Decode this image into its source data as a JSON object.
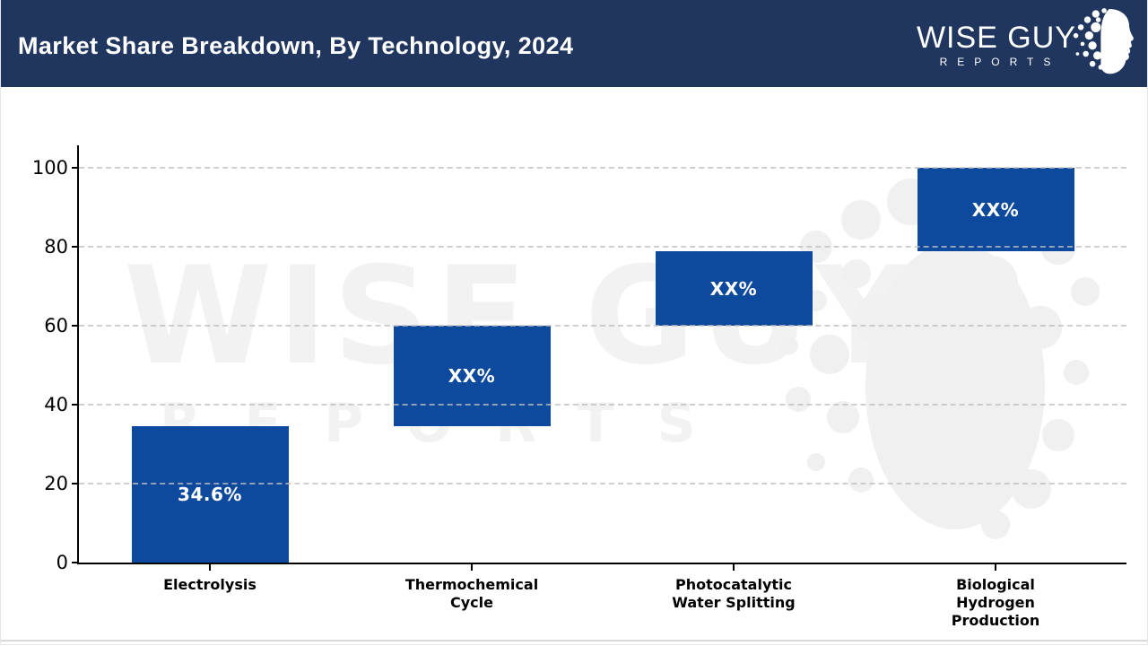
{
  "header": {
    "title": "Market Share Breakdown, By Technology, 2024",
    "logo": {
      "line1": "WISE GUY",
      "line2": "REPORTS"
    },
    "bg_color": "#20365f"
  },
  "watermark": {
    "line1": "WISE GUY",
    "line2": "REPORTS"
  },
  "chart_data": {
    "type": "bar",
    "subtype": "waterfall",
    "title": "Market Share Breakdown, By Technology, 2024",
    "categories": [
      "Electrolysis",
      "Thermochemical\nCycle",
      "Photocatalytic\nWater Splitting",
      "Biological\nHydrogen\nProduction"
    ],
    "segments": [
      {
        "category": "Electrolysis",
        "start": 0,
        "end": 34.6,
        "label": "34.6%"
      },
      {
        "category": "Thermochemical Cycle",
        "start": 34.6,
        "end": 60,
        "label": "XX%"
      },
      {
        "category": "Photocatalytic Water Splitting",
        "start": 60,
        "end": 78.8,
        "label": "XX%"
      },
      {
        "category": "Biological Hydrogen Production",
        "start": 78.8,
        "end": 100,
        "label": "XX%"
      }
    ],
    "ylim": [
      0,
      106
    ],
    "yticks": [
      0,
      20,
      40,
      60,
      80,
      100
    ],
    "grid": "horizontal-dashed",
    "grid_on_top": true,
    "legend": "none",
    "bar_color": "#0d4a9e",
    "label_color": "#ffffff",
    "axis_color": "#000000"
  }
}
